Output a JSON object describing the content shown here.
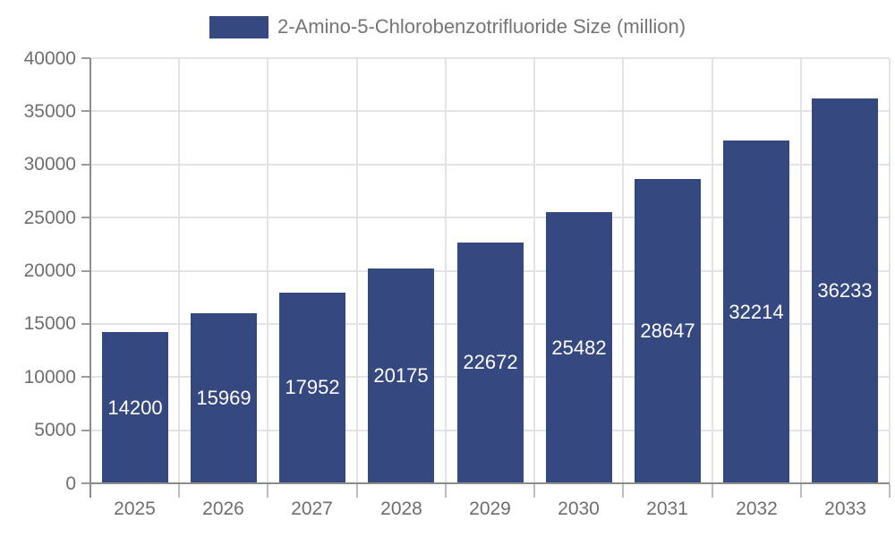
{
  "chart_data": {
    "type": "bar",
    "title": "",
    "legend": "2-Amino-5-Chlorobenzotrifluoride Size (million)",
    "legend_position": "top",
    "categories": [
      "2025",
      "2026",
      "2027",
      "2028",
      "2029",
      "2030",
      "2031",
      "2032",
      "2033"
    ],
    "series": [
      {
        "name": "2-Amino-5-Chlorobenzotrifluoride Size (million)",
        "values": [
          14200,
          15969,
          17952,
          20175,
          22672,
          25482,
          28647,
          32214,
          36233
        ]
      }
    ],
    "xlabel": "",
    "ylabel": "",
    "ylim": [
      0,
      40000
    ],
    "yticks": [
      0,
      5000,
      10000,
      15000,
      20000,
      25000,
      30000,
      35000,
      40000
    ],
    "grid": true,
    "value_labels_inside_bars": true,
    "colors": {
      "bar": "#35487F",
      "bar_value_label": "#FFFFFF",
      "axis_line": "#8C8C8C",
      "gridline": "#E3E3E3",
      "tick_label": "#6E6E6E",
      "legend_text": "#757575",
      "background": "#FFFFFF"
    }
  }
}
